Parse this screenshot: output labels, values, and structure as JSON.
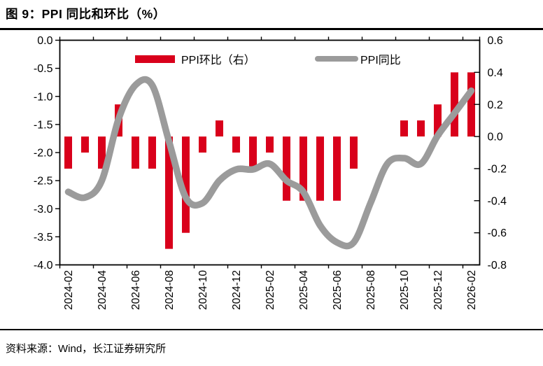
{
  "figure": {
    "title": "图 9：PPI 同比和环比（%）",
    "source": "资料来源：Wind，长江证券研究所"
  },
  "legend": {
    "bar_label": "PPI环比（右）",
    "line_label": "PPI同比"
  },
  "colors": {
    "bar": "#d9001b",
    "line": "#9b9b9b",
    "axis": "#000000",
    "text": "#000000"
  },
  "chart_data": {
    "type": "bar+line",
    "title": "图 9：PPI 同比和环比（%）",
    "grid": false,
    "legend_position": "top",
    "x": [
      "2024-02",
      "2024-03",
      "2024-04",
      "2024-05",
      "2024-06",
      "2024-07",
      "2024-08",
      "2024-09",
      "2024-10",
      "2024-11",
      "2024-12",
      "2025-01",
      "2025-02",
      "2025-03",
      "2025-04",
      "2025-05",
      "2025-06",
      "2025-07",
      "2025-08",
      "2025-09",
      "2025-10",
      "2025-11",
      "2025-12",
      "2026-01",
      "2026-02"
    ],
    "x_tick_labels": [
      "2024-02",
      "2024-04",
      "2024-06",
      "2024-08",
      "2024-10",
      "2024-12",
      "2025-02",
      "2025-04",
      "2025-06",
      "2025-08",
      "2025-10",
      "2025-12",
      "2026-02"
    ],
    "series": [
      {
        "name": "PPI环比（右）",
        "type": "bar",
        "axis": "right",
        "color": "#d9001b",
        "values": [
          -0.2,
          -0.1,
          -0.2,
          0.2,
          -0.2,
          -0.2,
          -0.7,
          -0.6,
          -0.1,
          0.1,
          -0.1,
          -0.2,
          -0.1,
          -0.4,
          -0.4,
          -0.4,
          -0.4,
          -0.2,
          0.0,
          0.0,
          0.1,
          0.1,
          0.2,
          0.4,
          0.4
        ]
      },
      {
        "name": "PPI同比",
        "type": "line",
        "axis": "left",
        "color": "#9b9b9b",
        "values": [
          -2.7,
          -2.8,
          -2.5,
          -1.4,
          -0.8,
          -0.8,
          -1.8,
          -2.8,
          -2.9,
          -2.5,
          -2.3,
          -2.3,
          -2.2,
          -2.5,
          -2.7,
          -3.3,
          -3.6,
          -3.6,
          -2.9,
          -2.2,
          -2.1,
          -2.2,
          -1.7,
          -1.3,
          -0.9
        ]
      }
    ],
    "left_axis": {
      "min": -4.0,
      "max": 0.0,
      "tick_labels": [
        "0.0",
        "-0.5",
        "-1.0",
        "-1.5",
        "-2.0",
        "-2.5",
        "-3.0",
        "-3.5",
        "-4.0"
      ]
    },
    "right_axis": {
      "min": -0.8,
      "max": 0.6,
      "tick_labels": [
        "0.6",
        "0.4",
        "0.2",
        "0.0",
        "-0.2",
        "-0.4",
        "-0.6",
        "-0.8"
      ]
    }
  }
}
